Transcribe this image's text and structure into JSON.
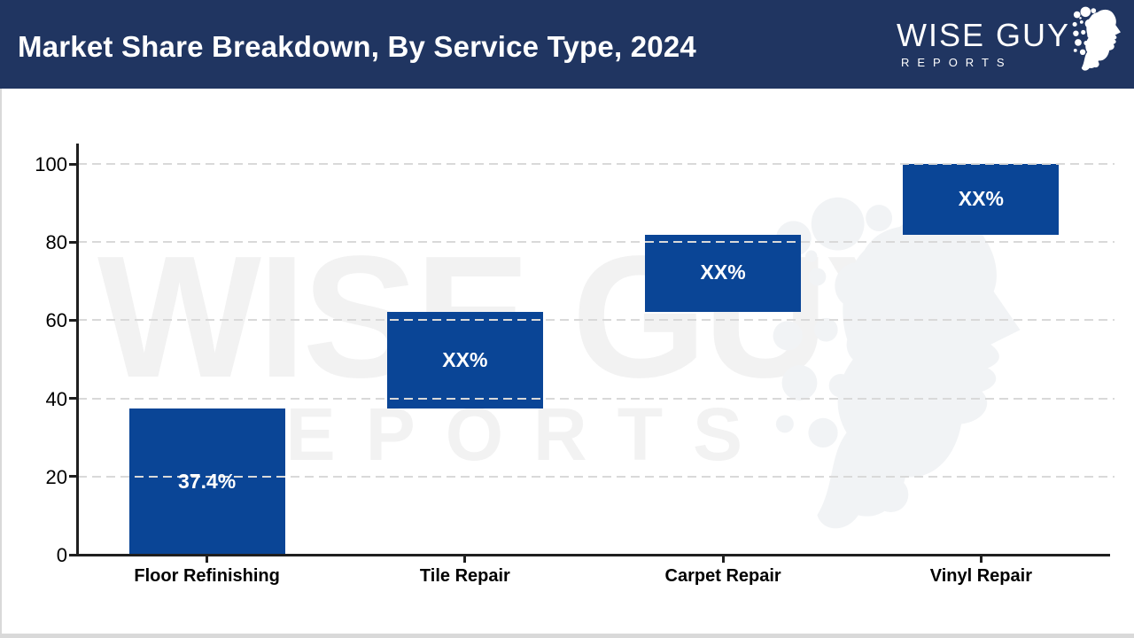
{
  "header": {
    "title": "Market Share Breakdown, By Service Type, 2024",
    "bg_color": "#203561",
    "logo": {
      "name": "WISE GUY",
      "tagline": "REPORTS"
    }
  },
  "watermark": {
    "text1": "WISE GUY",
    "text2": "REPORTS"
  },
  "chart_data": {
    "type": "bar",
    "variant": "floating-stacked-percentage",
    "title": "Market Share Breakdown, By Service Type, 2024",
    "categories": [
      "Floor Refinishing",
      "Tile Repair",
      "Carpet Repair",
      "Vinyl Repair"
    ],
    "segments": [
      {
        "category": "Floor Refinishing",
        "start": 0,
        "end": 37.4,
        "label": "37.4%"
      },
      {
        "category": "Tile Repair",
        "start": 37.4,
        "end": 62.1,
        "label": "XX%"
      },
      {
        "category": "Carpet Repair",
        "start": 62.1,
        "end": 81.9,
        "label": "XX%"
      },
      {
        "category": "Vinyl Repair",
        "start": 81.9,
        "end": 100,
        "label": "XX%"
      }
    ],
    "xlabel": "",
    "ylabel": "",
    "ylim": [
      0,
      100
    ],
    "yticks": [
      0,
      20,
      40,
      60,
      80,
      100
    ],
    "grid": "horizontal dashed, drawn over bars",
    "legend": "none",
    "bar_color": "#0A4596",
    "bar_label_color": "#ffffff",
    "axis_color": "#1f1f1f",
    "gridline_color": "#d9d9d9"
  }
}
